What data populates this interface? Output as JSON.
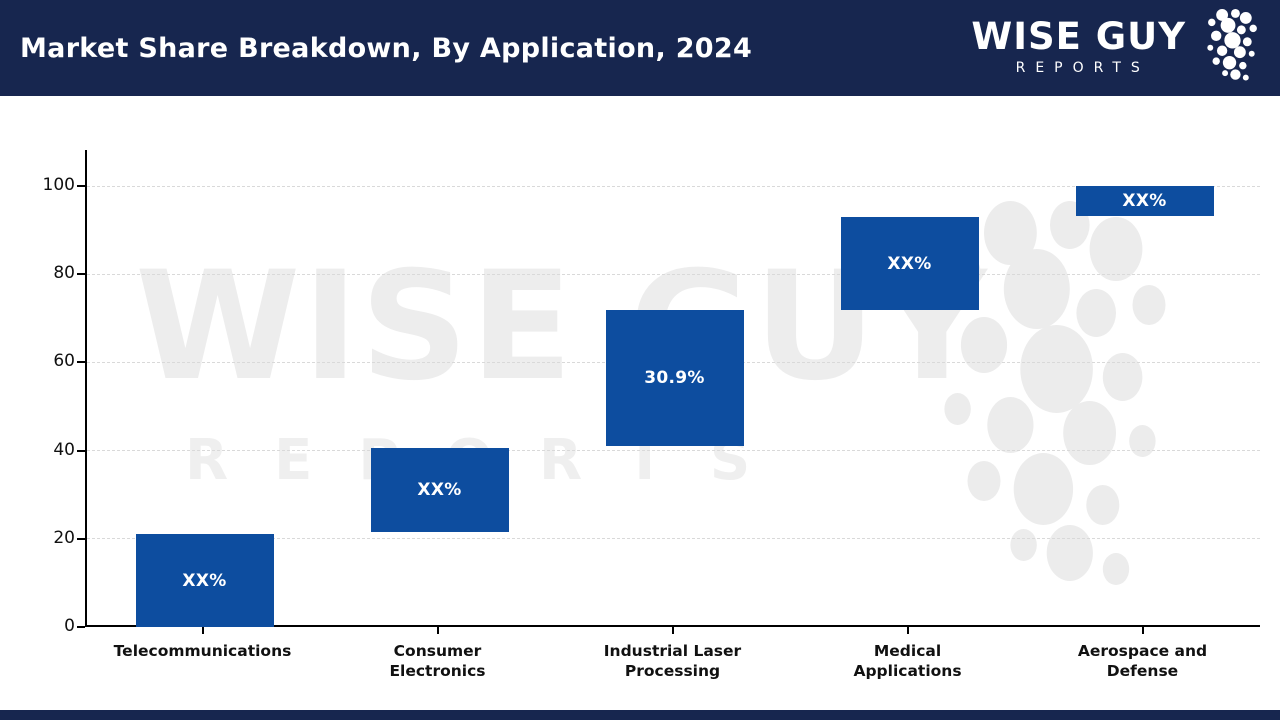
{
  "header": {
    "title": "Market Share Breakdown, By Application, 2024",
    "brand_name": "WISE GUY",
    "brand_sub": "REPORTS"
  },
  "watermark": {
    "line1": "WISE GUY",
    "line2": "REPORTS"
  },
  "chart_data": {
    "type": "bar",
    "variant": "waterfall",
    "title": "Market Share Breakdown, By Application, 2024",
    "categories": [
      "Telecommunications",
      "Consumer Electronics",
      "Industrial Laser Processing",
      "Medical Applications",
      "Aerospace and Defense"
    ],
    "category_label_lines": [
      [
        "Telecommunications"
      ],
      [
        "Consumer",
        "Electronics"
      ],
      [
        "Industrial Laser",
        "Processing"
      ],
      [
        "Medical",
        "Applications"
      ],
      [
        "Aerospace and",
        "Defense"
      ]
    ],
    "segments": [
      {
        "category": "Telecommunications",
        "start": 0,
        "end": 21,
        "label": "XX%"
      },
      {
        "category": "Consumer Electronics",
        "start": 21.5,
        "end": 40.5,
        "label": "XX%"
      },
      {
        "category": "Industrial Laser Processing",
        "start": 41,
        "end": 71.9,
        "label": "30.9%"
      },
      {
        "category": "Medical Applications",
        "start": 71.9,
        "end": 92.9,
        "label": "XX%"
      },
      {
        "category": "Aerospace and Defense",
        "start": 93.1,
        "end": 100,
        "label": "XX%"
      }
    ],
    "values": [
      21,
      19,
      30.9,
      21,
      6.9
    ],
    "y_ticks": [
      0,
      20,
      40,
      60,
      80,
      100
    ],
    "ylim": [
      0,
      100
    ],
    "grid": true,
    "legend": false,
    "bar_color": "#0d4d9f"
  },
  "colors": {
    "header_bg": "#17264f",
    "footer_bg": "#17264f",
    "bar": "#0d4d9f",
    "gridline": "#d9d9d9",
    "axis": "#000000",
    "watermark": "#ededed"
  }
}
